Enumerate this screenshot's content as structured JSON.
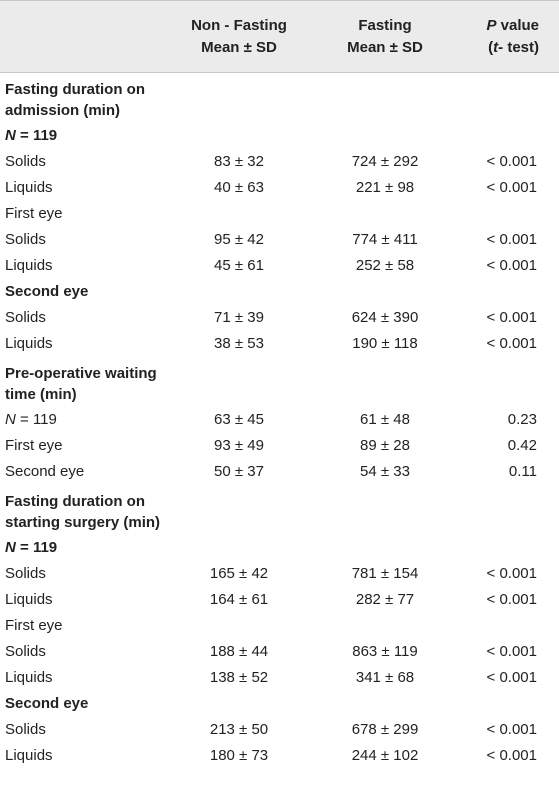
{
  "header": {
    "col_nonfasting_l1": "Non - Fasting",
    "col_nonfasting_l2": "Mean ± SD",
    "col_fasting_l1": "Fasting",
    "col_fasting_l2": "Mean ± SD",
    "col_p_l1_italic": "P",
    "col_p_l1_rest": " value",
    "col_p_l2_open": "(",
    "col_p_l2_italic": "t",
    "col_p_l2_rest": "- test)"
  },
  "rows": [
    {
      "label": "Fasting duration on admission (min)",
      "nf": "",
      "f": "",
      "p": "",
      "bold": true
    },
    {
      "n_italic": "N",
      "n_rest": " = 119",
      "bold": true
    },
    {
      "label": "Solids",
      "nf": "83 ± 32",
      "f": "724 ± 292",
      "p": "< 0.001"
    },
    {
      "label": "Liquids",
      "nf": "40 ± 63",
      "f": "221 ± 98",
      "p": "< 0.001"
    },
    {
      "label": "First eye",
      "nf": "",
      "f": "",
      "p": ""
    },
    {
      "label": "Solids",
      "nf": "95 ± 42",
      "f": "774 ± 411",
      "p": "< 0.001"
    },
    {
      "label": "Liquids",
      "nf": "45 ± 61",
      "f": "252 ± 58",
      "p": "< 0.001"
    },
    {
      "label": "Second eye",
      "nf": "",
      "f": "",
      "p": "",
      "bold": true
    },
    {
      "label": "Solids",
      "nf": "71 ± 39",
      "f": "624 ± 390",
      "p": "< 0.001"
    },
    {
      "label": "Liquids",
      "nf": "38 ± 53",
      "f": "190 ± 118",
      "p": "< 0.001"
    },
    {
      "label": "Pre-operative waiting time (min)",
      "nf": "",
      "f": "",
      "p": "",
      "bold": true
    },
    {
      "n_italic": "N",
      "n_rest": " = 119",
      "nf": "63 ± 45",
      "f": "61 ± 48",
      "p": "0.23"
    },
    {
      "label": "First eye",
      "nf": "93 ± 49",
      "f": "89 ± 28",
      "p": "0.42"
    },
    {
      "label": "Second eye",
      "nf": "50 ± 37",
      "f": "54 ± 33",
      "p": "0.11"
    },
    {
      "label": "Fasting duration on starting surgery (min)",
      "nf": "",
      "f": "",
      "p": "",
      "bold": true
    },
    {
      "n_italic": "N",
      "n_rest": " = 119",
      "bold": true
    },
    {
      "label": "Solids",
      "nf": "165 ± 42",
      "f": "781 ± 154",
      "p": "< 0.001"
    },
    {
      "label": "Liquids",
      "nf": "164 ± 61",
      "f": "282 ± 77",
      "p": "< 0.001"
    },
    {
      "label": "First eye",
      "nf": "",
      "f": "",
      "p": ""
    },
    {
      "label": "Solids",
      "nf": "188 ± 44",
      "f": "863 ± 119",
      "p": "< 0.001"
    },
    {
      "label": "Liquids",
      "nf": "138 ± 52",
      "f": "341 ± 68",
      "p": "< 0.001"
    },
    {
      "label": "Second eye",
      "nf": "",
      "f": "",
      "p": "",
      "bold": true
    },
    {
      "label": "Solids",
      "nf": "213 ± 50",
      "f": "678 ± 299",
      "p": "< 0.001"
    },
    {
      "label": "Liquids",
      "nf": "180 ± 73",
      "f": "244 ± 102",
      "p": "< 0.001"
    }
  ]
}
